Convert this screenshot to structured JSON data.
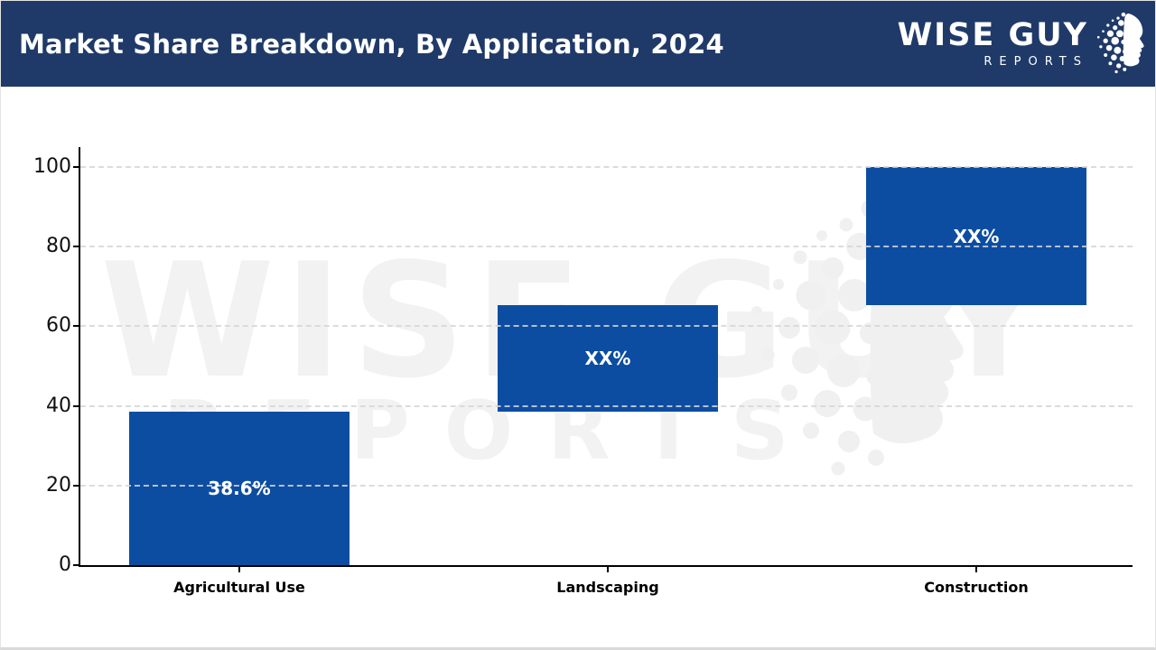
{
  "header": {
    "title": "Market Share Breakdown, By Application, 2024",
    "background_color": "#1f3a68",
    "brand": {
      "name": "WISE GUY",
      "subname": "REPORTS"
    }
  },
  "watermark": {
    "line1": "WISE GUY",
    "line2": "REPORTS",
    "color": "#f2f2f2"
  },
  "chart_data": {
    "type": "bar",
    "subtype": "waterfall-range-bars",
    "title": "Market Share Breakdown, By Application, 2024",
    "categories": [
      "Agricultural Use",
      "Landscaping",
      "Construction"
    ],
    "segments": [
      {
        "category": "Agricultural Use",
        "start": 0,
        "end": 38.6,
        "label": "38.6%"
      },
      {
        "category": "Landscaping",
        "start": 38.6,
        "end": 65.3,
        "label": "XX%"
      },
      {
        "category": "Construction",
        "start": 65.3,
        "end": 100,
        "label": "XX%"
      }
    ],
    "xlabel": "",
    "ylabel": "",
    "ylim": [
      0,
      105
    ],
    "yticks": [
      0,
      20,
      40,
      60,
      80,
      100
    ],
    "grid": "horizontal-dashed",
    "grid_on_top_of_bars": true,
    "legend": "none",
    "bar_color": "#0c4da2",
    "bar_label_color": "#ffffff",
    "axis_color": "#000000",
    "grid_color": "#d9d9d9"
  }
}
